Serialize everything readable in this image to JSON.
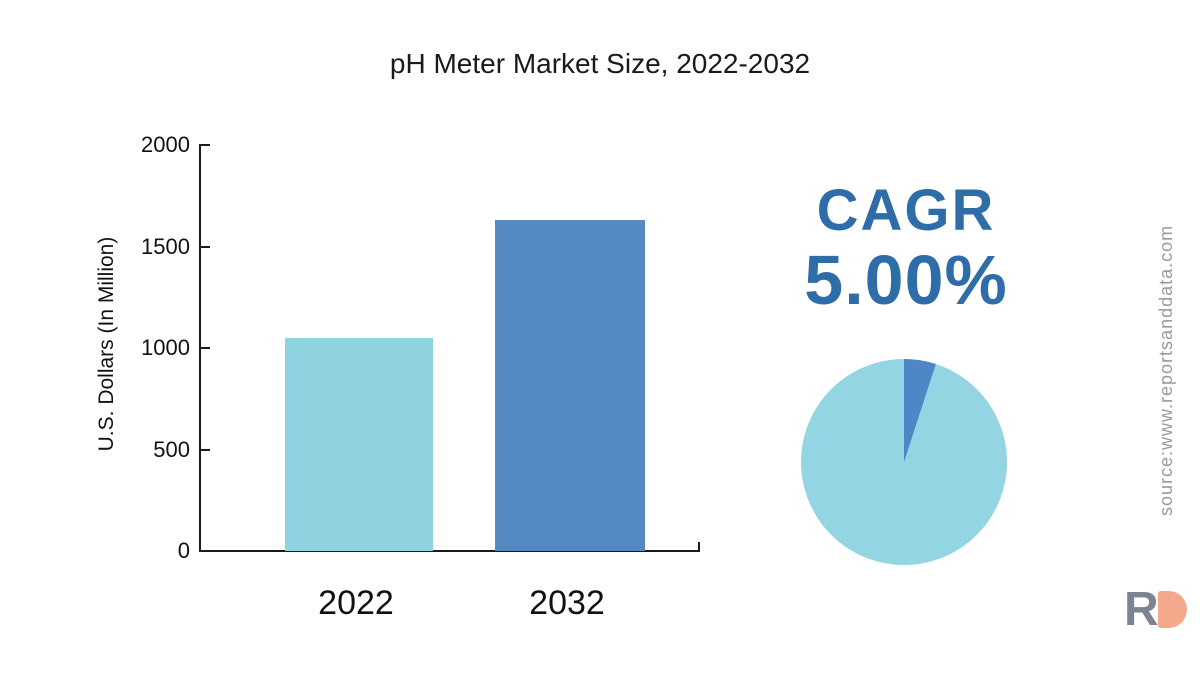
{
  "title": "pH Meter Market Size, 2022-2032",
  "source_note": "source:www.reportsanddata.com",
  "cagr": {
    "label": "CAGR",
    "value": "5.00%"
  },
  "logo": {
    "letter_r": "R"
  },
  "colors": {
    "accent_blue": "#2e6da8",
    "bar_2022": "#8fd3e0",
    "bar_2032": "#5589c4",
    "pie_main": "#93d5e2",
    "pie_slice": "#4e86c6",
    "axis": "#1a1a1a",
    "source_gray": "#9a9a9a",
    "logo_gray": "#7c8493",
    "logo_peach": "#f4a98c"
  },
  "chart_data": [
    {
      "type": "bar",
      "title": "pH Meter Market Size, 2022-2032",
      "categories": [
        "2022",
        "2032"
      ],
      "values": [
        1050,
        1630
      ],
      "bar_colors": [
        "#8fd3e0",
        "#5589c4"
      ],
      "xlabel": "",
      "ylabel": "U.S. Dollars (In Million)",
      "ylim": [
        0,
        2000
      ],
      "yticks": [
        0,
        500,
        1000,
        1500,
        2000
      ],
      "grid": false,
      "legend": "none"
    },
    {
      "type": "pie",
      "title": "CAGR 5.00%",
      "slices": [
        {
          "name": "cagr-highlight",
          "value": 5,
          "color": "#4e86c6"
        },
        {
          "name": "remainder",
          "value": 95,
          "color": "#93d5e2"
        }
      ],
      "start_angle_deg": 0,
      "direction": "clockwise",
      "labels_shown": false
    }
  ]
}
